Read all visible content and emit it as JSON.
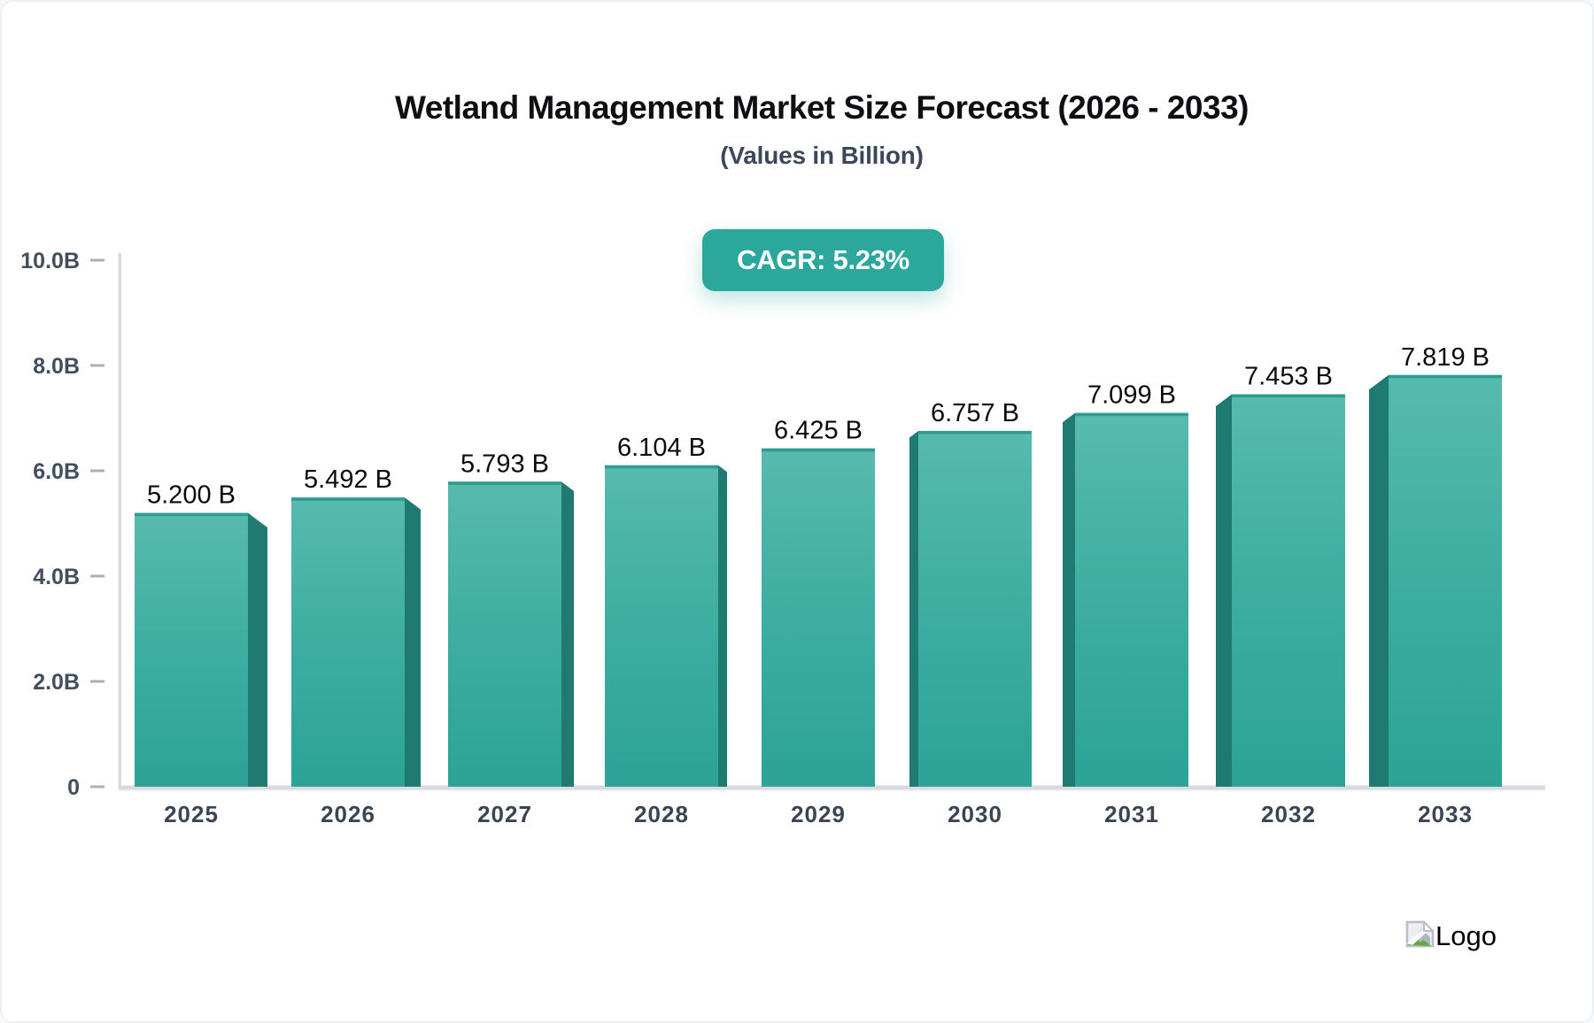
{
  "header": {
    "title": "Wetland Management Market Size Forecast (2026 - 2033)",
    "subtitle": "(Values in Billion)",
    "cagr_badge": "CAGR: 5.23%"
  },
  "footer": {
    "logo_alt": "Logo",
    "logo_icon": "broken-image-icon"
  },
  "chart_data": {
    "type": "bar",
    "title": "Wetland Management Market Size Forecast (2026 - 2033)",
    "subtitle": "(Values in Billion)",
    "cagr_percent": "5.23%",
    "categories": [
      "2025",
      "2026",
      "2027",
      "2028",
      "2029",
      "2030",
      "2031",
      "2032",
      "2033"
    ],
    "values": [
      5.2,
      5.492,
      5.793,
      6.104,
      6.425,
      6.757,
      7.099,
      7.453,
      7.819
    ],
    "value_labels": [
      "5.200 B",
      "5.492 B",
      "5.793 B",
      "6.104 B",
      "6.425 B",
      "6.757 B",
      "7.099 B",
      "7.453 B",
      "7.819 B"
    ],
    "y_ticks": [
      {
        "label": "10.0B",
        "value": 10.0
      },
      {
        "label": "8.0B",
        "value": 8.0
      },
      {
        "label": "6.0B",
        "value": 6.0
      },
      {
        "label": "4.0B",
        "value": 4.0
      },
      {
        "label": "2.0B",
        "value": 2.0
      },
      {
        "label": "0",
        "value": 0
      }
    ],
    "ylim": [
      0,
      10
    ],
    "xlabel": "",
    "ylabel": "",
    "grid": false,
    "legend": "none",
    "bar_style": "3d-perspective-toward-center",
    "colors": {
      "bar_face_top": "#58BAAE",
      "bar_face_mid": "#3FAFA2",
      "bar_face_bottom": "#2BA396",
      "bar_top_edge": "#2D9B8F",
      "bar_side": "#1F7B71",
      "badge_bg": "#2BA89B",
      "axis_line": "#D7DBE0",
      "tick_dash": "#A9B0B9",
      "y_label": "#434E5D",
      "x_label": "#3A4554",
      "value_label": "#0A0A0C"
    }
  }
}
